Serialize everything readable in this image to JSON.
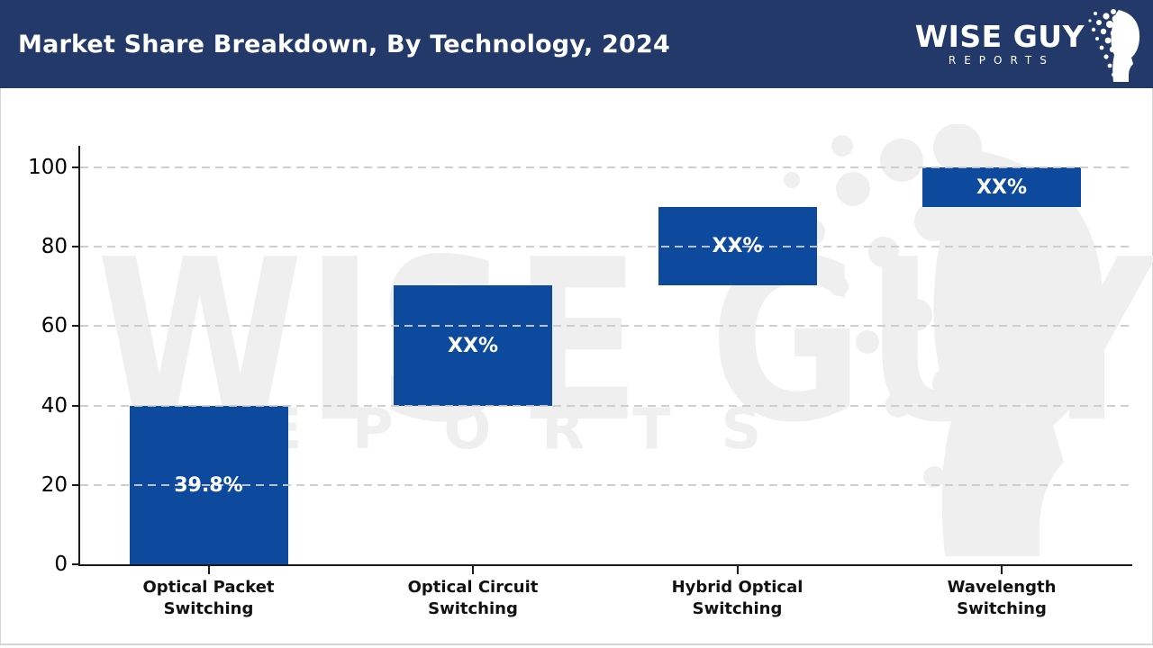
{
  "header": {
    "title": "Market Share Breakdown, By Technology, 2024",
    "logo": {
      "name": "WISE GUY",
      "sub": "REPORTS"
    }
  },
  "watermark": {
    "name": "WISE GUY",
    "sub": "REPORTS"
  },
  "colors": {
    "header_bg": "#22396a",
    "bar": "#0d4a9e",
    "bar_label": "#ffffff",
    "gridline": "#cbcbcb",
    "watermark": "#efefef",
    "axis": "#1a1a1a"
  },
  "chart_data": {
    "type": "bar",
    "subtype": "waterfall",
    "title": "Market Share Breakdown, By Technology, 2024",
    "xlabel": "",
    "ylabel": "",
    "categories": [
      "Optical Packet\nSwitching",
      "Optical Circuit\nSwitching",
      "Hybrid Optical\nSwitching",
      "Wavelength\nSwitching"
    ],
    "segments": [
      {
        "category": "Optical Packet Switching",
        "start": 0,
        "end": 39.8,
        "label": "39.8%"
      },
      {
        "category": "Optical Circuit Switching",
        "start": 39.8,
        "end": 70.2,
        "label": "XX%"
      },
      {
        "category": "Hybrid Optical Switching",
        "start": 70.2,
        "end": 90.0,
        "label": "XX%"
      },
      {
        "category": "Wavelength Switching",
        "start": 90.0,
        "end": 100.0,
        "label": "XX%"
      }
    ],
    "yticks": [
      0,
      20,
      40,
      60,
      80,
      100
    ],
    "ylim": [
      0,
      105
    ],
    "grid": "horizontal dashed, drawn above bars",
    "legend": "none"
  }
}
